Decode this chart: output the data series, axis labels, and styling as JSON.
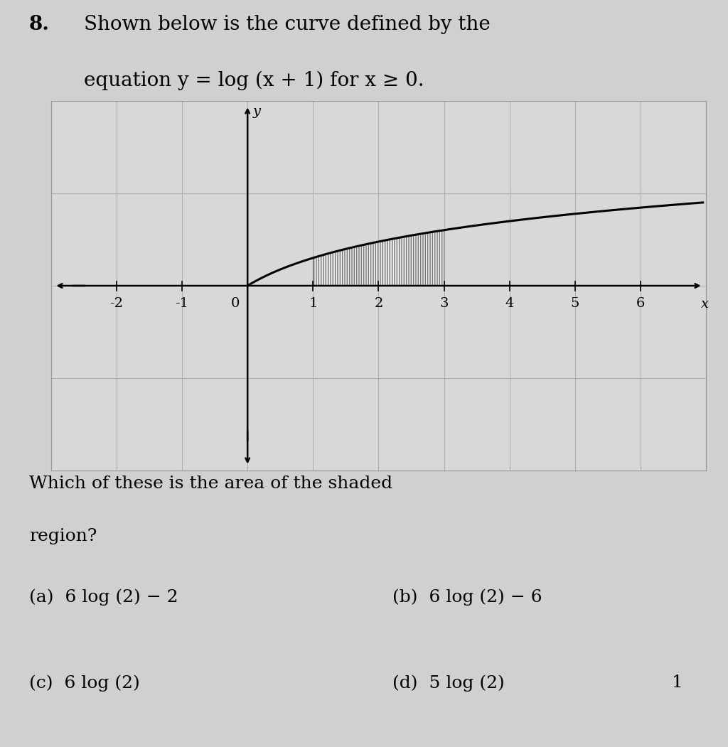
{
  "title_number": "8.",
  "title_line1": "Shown below is the curve defined by the",
  "title_line2": "equation y = log (x + 1) for x ≥ 0.",
  "question_line1": "Which of these is the area of the shaded",
  "question_line2": "region?",
  "opt_a": "(a)  6 log (2) − 2",
  "opt_b": "(b)  6 log (2) − 6",
  "opt_c": "(c)  6 log (2)",
  "opt_d": "(d)  5 log (2)",
  "opt_num": "1",
  "x_min": -3,
  "x_max": 7,
  "y_min": -2,
  "y_max": 2,
  "x_ticks": [
    -2,
    -1,
    0,
    1,
    2,
    3,
    4,
    5,
    6
  ],
  "shade_x_start": 1,
  "shade_x_end": 3,
  "curve_color": "#000000",
  "grid_color": "#b0b0b0",
  "bg_color": "#d0d0d0",
  "plot_bg_color": "#d8d8d8",
  "font_size_title": 20,
  "font_size_options": 18,
  "font_size_question": 18,
  "font_size_axis": 14
}
